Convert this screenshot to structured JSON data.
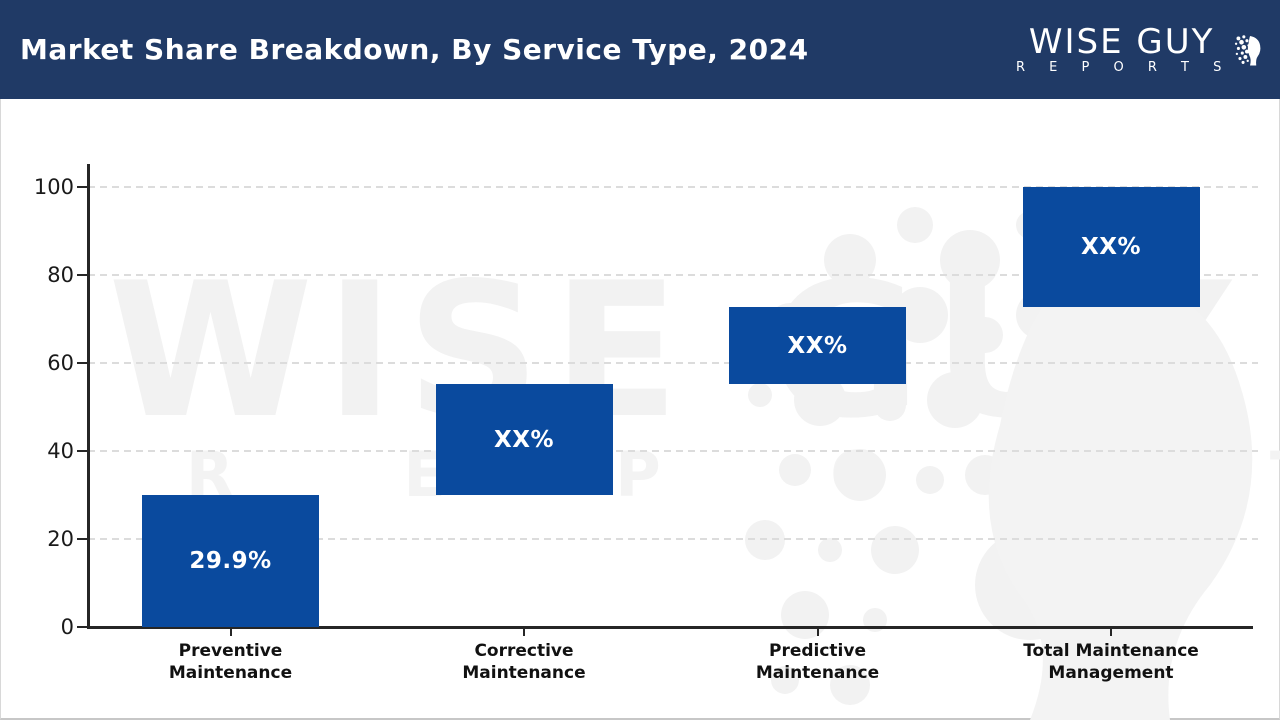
{
  "header": {
    "title": "Market Share Breakdown, By Service Type, 2024",
    "logo": {
      "line1": "WISE GUY",
      "line2": "R E P O R T S"
    }
  },
  "watermark": {
    "line1": "WISE GUY",
    "line2": "R E P O R T S"
  },
  "colors": {
    "header_bg": "#203a66",
    "bar_blue": "#0a4a9e",
    "grid": "#dcdcdc",
    "axis": "#262626"
  },
  "chart_data": {
    "type": "bar",
    "subtype": "waterfall",
    "title": "Market Share Breakdown, By Service Type, 2024",
    "categories": [
      "Preventive\nMaintenance",
      "Corrective\nMaintenance",
      "Predictive\nMaintenance",
      "Total Maintenance\nManagement"
    ],
    "segments": [
      {
        "category": "Preventive Maintenance",
        "start": 0,
        "end": 29.9,
        "label": "29.9%"
      },
      {
        "category": "Corrective Maintenance",
        "start": 29.9,
        "end": 55.2,
        "label": "XX%"
      },
      {
        "category": "Predictive Maintenance",
        "start": 55.2,
        "end": 72.7,
        "label": "XX%"
      },
      {
        "category": "Total Maintenance Management",
        "start": 72.7,
        "end": 100,
        "label": "XX%"
      }
    ],
    "ylim": [
      0,
      100
    ],
    "yticks": [
      0,
      20,
      40,
      60,
      80,
      100
    ],
    "grid": "dashed horizontal",
    "legend": "none",
    "bar_color": "#0a4a9e",
    "value_label_color": "#ffffff"
  }
}
